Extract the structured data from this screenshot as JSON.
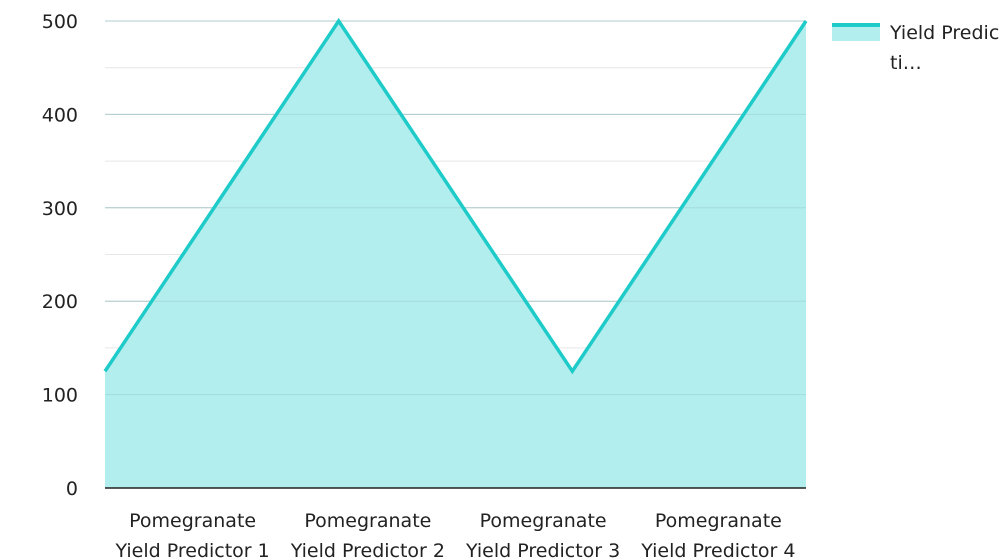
{
  "chart_data": {
    "type": "area",
    "categories": [
      "Pomegranate Yield Predictor 1",
      "Pomegranate Yield Predictor 2",
      "Pomegranate Yield Predictor 3",
      "Pomegranate Yield Predictor 4"
    ],
    "series": [
      {
        "name": "Yield Predicti…",
        "values": [
          125,
          500,
          125,
          500
        ]
      }
    ],
    "ylim": [
      0,
      500
    ],
    "yticks": [
      0,
      100,
      200,
      300,
      400,
      500
    ],
    "title": "",
    "xlabel": "",
    "ylabel": "",
    "grid": true,
    "legend_position": "top-right",
    "colors": {
      "line": "#1ecbc9",
      "fill": "#b2eeed",
      "grid": "#d0d0d0",
      "axis": "#222222",
      "text": "#222222"
    }
  }
}
